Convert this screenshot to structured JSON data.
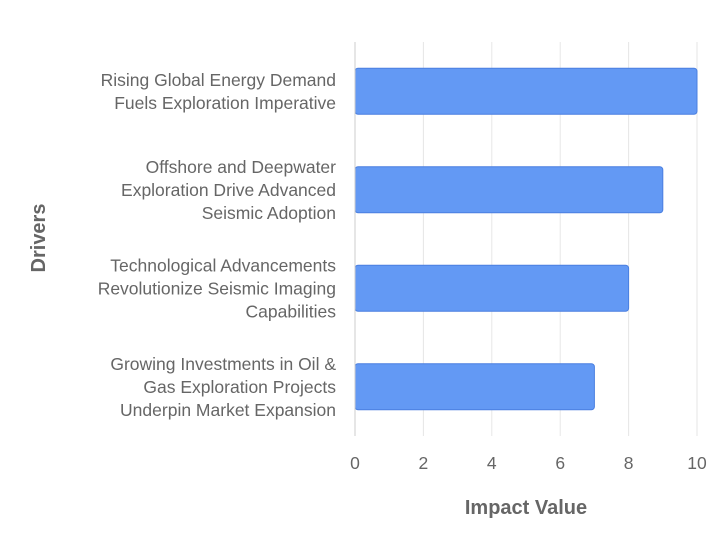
{
  "chart_data": {
    "type": "bar",
    "orientation": "horizontal",
    "categories": [
      [
        "Rising Global Energy Demand",
        "Fuels Exploration Imperative"
      ],
      [
        "Offshore and Deepwater",
        "Exploration Drive Advanced",
        "Seismic Adoption"
      ],
      [
        "Technological Advancements",
        "Revolutionize Seismic Imaging",
        "Capabilities"
      ],
      [
        "Growing Investments in Oil &",
        "Gas Exploration Projects",
        "Underpin Market Expansion"
      ]
    ],
    "values": [
      10,
      9,
      8,
      7
    ],
    "xlabel": "Impact Value",
    "ylabel": "Drivers",
    "xlim": [
      0,
      10
    ],
    "xticks": [
      "0",
      "2",
      "4",
      "6",
      "8",
      "10"
    ],
    "grid": true,
    "legend": "none",
    "colors": {
      "bar_fill": "#6399f4",
      "bar_stroke": "#4a7fe0",
      "grid": "#e6e6e6",
      "axis": "#cccccc",
      "text": "#666666"
    }
  }
}
